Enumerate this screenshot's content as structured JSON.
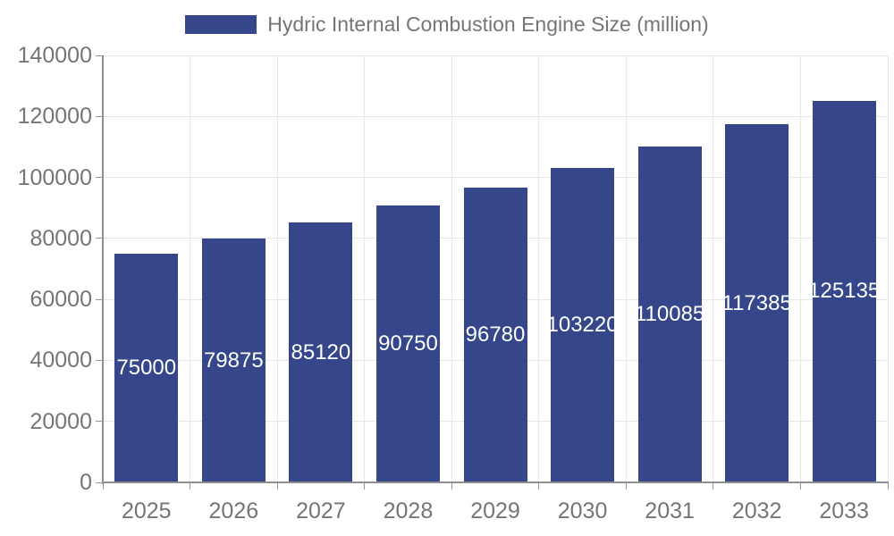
{
  "chart_data": {
    "type": "bar",
    "title": "Hydric Internal Combustion Engine Size (million)",
    "categories": [
      "2025",
      "2026",
      "2027",
      "2028",
      "2029",
      "2030",
      "2031",
      "2032",
      "2033"
    ],
    "values": [
      75000,
      79875,
      85120,
      90750,
      96780,
      103220,
      110085,
      117385,
      125135
    ],
    "xlabel": "",
    "ylabel": "",
    "ylim": [
      0,
      140000
    ],
    "ytick_interval": 20000,
    "yticks": [
      0,
      20000,
      40000,
      60000,
      80000,
      100000,
      120000,
      140000
    ],
    "grid": true,
    "legend_position": "top-center",
    "colors": {
      "bar": "#35478a",
      "value_label": "#ffffff",
      "axis_text": "#757575",
      "axis_line": "#8f8f8f",
      "gridline": "#e6e6e6",
      "background": "#ffffff"
    }
  }
}
